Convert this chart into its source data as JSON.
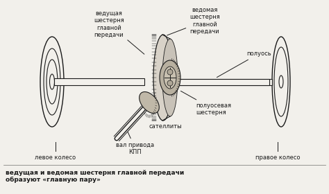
{
  "bg_color": "#f2f0eb",
  "line_color": "#1a1a1a",
  "text_color": "#1a1a1a",
  "title_text": "ведущая и ведомая шестерня главной передачи\nобразуют «главную пару»",
  "labels": {
    "vedushaya": "ведущая\nшестерня\nглавной\nпередачи",
    "vedomaya": "ведомая\nшестерня\nглавной\nпередачи",
    "poluos": "полуось",
    "poluosevaya": "полуосевая\nшестерня",
    "satellit": "сателлиты",
    "val_kpp": "вал привода\nКПП",
    "levoe": "левое колесо",
    "pravoe": "правое колесо"
  },
  "figsize": [
    4.74,
    2.8
  ],
  "dpi": 100
}
